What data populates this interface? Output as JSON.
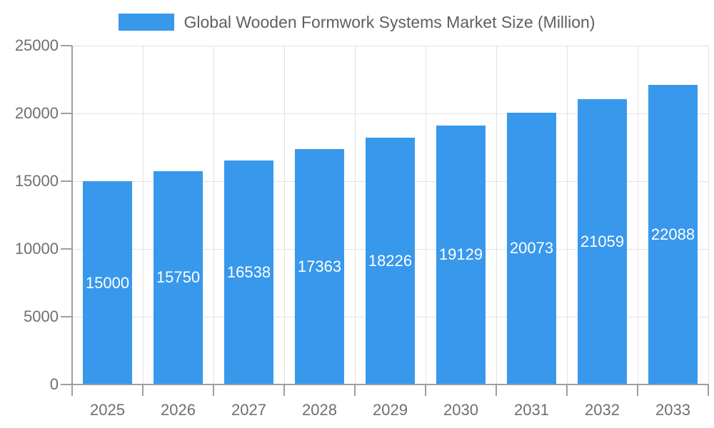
{
  "chart_data": {
    "type": "bar",
    "title": "Global Wooden Formwork Systems Market Size (Million)",
    "categories": [
      "2025",
      "2026",
      "2027",
      "2028",
      "2029",
      "2030",
      "2031",
      "2032",
      "2033"
    ],
    "series": [
      {
        "name": "Global Wooden Formwork Systems Market Size (Million)",
        "values": [
          15000,
          15750,
          16538,
          17363,
          18226,
          19129,
          20073,
          21059,
          22088
        ]
      }
    ],
    "bar_labels": [
      "15000",
      "15750",
      "16538",
      "17363",
      "18226",
      "19129",
      "20073",
      "21059",
      "22088"
    ],
    "xlabel": "",
    "ylabel": "",
    "ylim": [
      0,
      25000
    ],
    "yticks": [
      0,
      5000,
      10000,
      15000,
      20000,
      25000
    ],
    "ytick_labels": [
      "0",
      "5000",
      "10000",
      "15000",
      "20000",
      "25000"
    ],
    "legend_position": "top",
    "grid": true
  },
  "colors": {
    "bar": "#3898EC",
    "bar_label": "#FFFFFF",
    "grid": "#E2E2E2",
    "axis": "#9E9E9E",
    "tick_label": "#6F6F6F",
    "legend_text": "#5F5F5F",
    "background": "#FFFFFF"
  }
}
